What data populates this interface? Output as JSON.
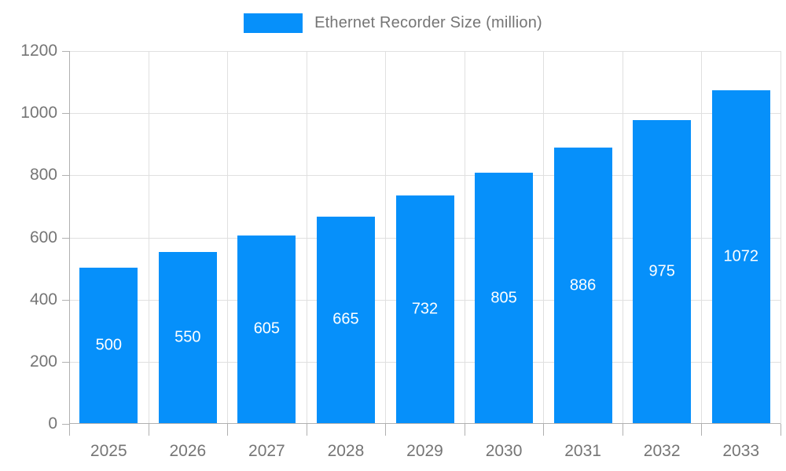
{
  "legend": {
    "label": "Ethernet Recorder Size (million)"
  },
  "colors": {
    "bar": "#0690fa",
    "grid": "#e0e0e0",
    "axis": "#b0b0b0",
    "tick_text": "#757575",
    "bar_label_text": "#ffffff",
    "background": "#ffffff"
  },
  "chart_data": {
    "type": "bar",
    "title": "Ethernet Recorder Size (million)",
    "categories": [
      "2025",
      "2026",
      "2027",
      "2028",
      "2029",
      "2030",
      "2031",
      "2032",
      "2033"
    ],
    "values": [
      500,
      550,
      605,
      665,
      732,
      805,
      886,
      975,
      1072
    ],
    "xlabel": "",
    "ylabel": "",
    "ylim": [
      0,
      1200
    ],
    "yticks": [
      0,
      200,
      400,
      600,
      800,
      1000,
      1200
    ],
    "grid": true,
    "legend_position": "top-center",
    "value_label_position": "inside-center"
  }
}
